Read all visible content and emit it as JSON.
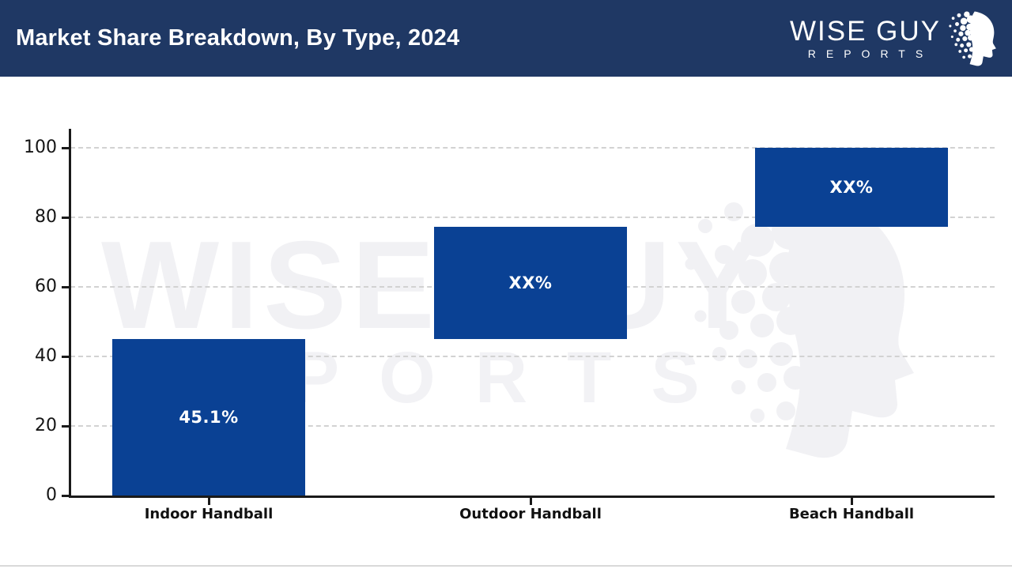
{
  "header": {
    "title": "Market Share Breakdown, By Type, 2024",
    "brand": {
      "line1": "WISE GUY",
      "line2": "REPORTS"
    }
  },
  "watermark": {
    "line1": "WISE GUY",
    "line2": "REPORTS"
  },
  "chart_data": {
    "type": "bar",
    "subtype": "waterfall",
    "title": "Market Share Breakdown, By Type, 2024",
    "categories": [
      "Indoor Handball",
      "Outdoor Handball",
      "Beach Handball"
    ],
    "segments": [
      {
        "category": "Indoor Handball",
        "start": 0,
        "end": 45.1,
        "label": "45.1%"
      },
      {
        "category": "Outdoor Handball",
        "start": 45.1,
        "end": 77.3,
        "label": "XX%"
      },
      {
        "category": "Beach Handball",
        "start": 77.3,
        "end": 100.0,
        "label": "XX%"
      }
    ],
    "xlabel": "",
    "ylabel": "",
    "ylim": [
      0,
      105
    ],
    "y_ticks": [
      0,
      20,
      40,
      60,
      80,
      100
    ],
    "grid": "horizontal-dashed",
    "legend": "none",
    "bar_color": "#0a4194",
    "bar_label_color": "#ffffff",
    "accent_navy": "#1f3864"
  }
}
